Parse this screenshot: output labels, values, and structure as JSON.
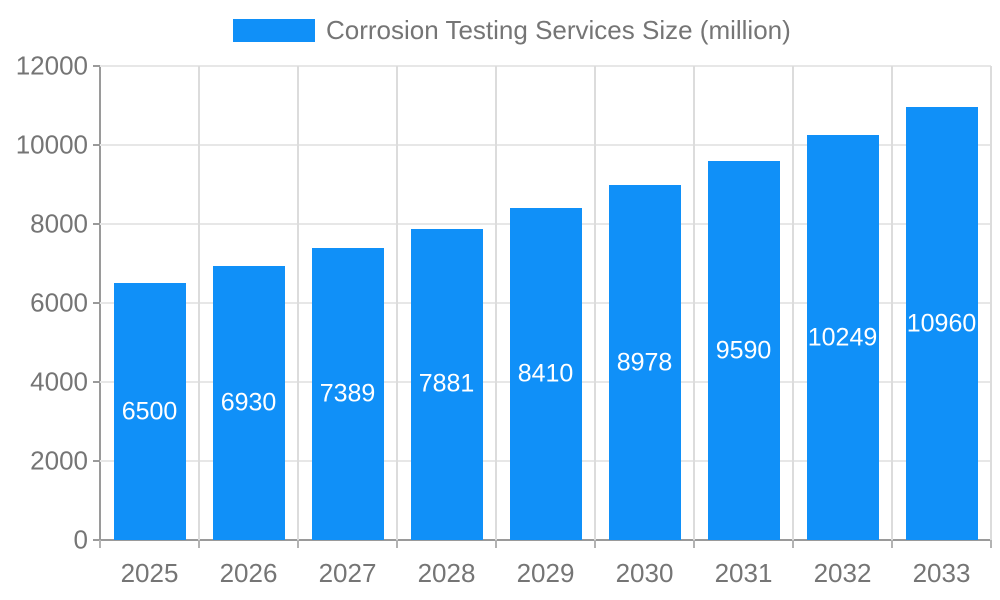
{
  "legend": {
    "label": "Corrosion Testing Services Size (million)"
  },
  "colors": {
    "bar": "#1090f8",
    "axis_line": "#9a9a9a",
    "grid_line_horizontal": "#e7e7e7",
    "grid_line_vertical": "#dcdcdc",
    "tick_text": "#757575",
    "value_text": "#ffffff",
    "background": "#ffffff"
  },
  "chart_data": {
    "type": "bar",
    "title": "Corrosion Testing Services Size (million)",
    "categories": [
      "2025",
      "2026",
      "2027",
      "2028",
      "2029",
      "2030",
      "2031",
      "2032",
      "2033"
    ],
    "series": [
      {
        "name": "Corrosion Testing Services Size (million)",
        "values": [
          6500,
          6930,
          7389,
          7881,
          8410,
          8978,
          9590,
          10249,
          10960
        ]
      }
    ],
    "value_labels_shown": true,
    "xlabel": "",
    "ylabel": "",
    "ylim": [
      0,
      12000
    ],
    "yticks": [
      0,
      2000,
      4000,
      6000,
      8000,
      10000,
      12000
    ],
    "grid": true,
    "legend_position": "top"
  }
}
